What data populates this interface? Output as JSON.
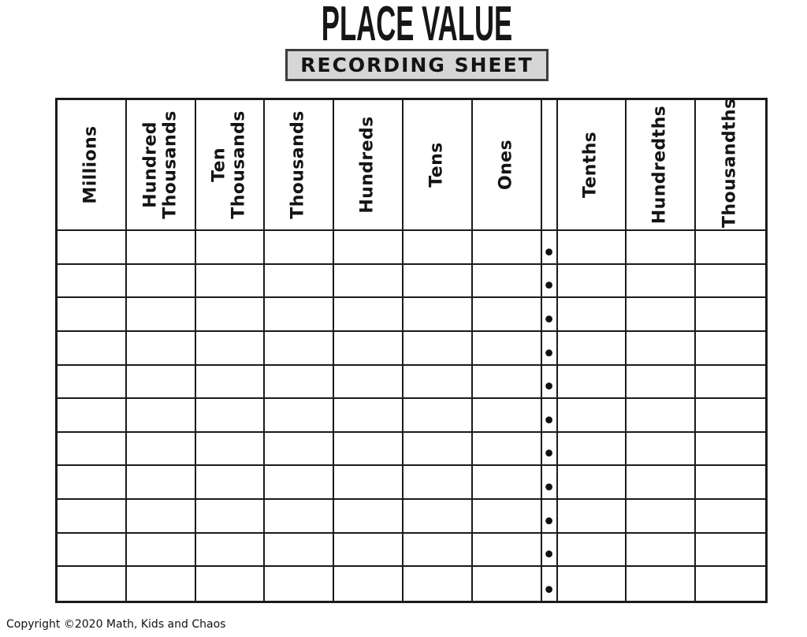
{
  "title": "PLACE VALUE",
  "subtitle": "RECORDING SHEET",
  "copyright": "Copyright ©2020 Math, Kids and Chaos",
  "table": {
    "columns": [
      {
        "label": "Millions",
        "type": "place"
      },
      {
        "label": "Hundred\nThousands",
        "type": "place"
      },
      {
        "label": "Ten\nThousands",
        "type": "place"
      },
      {
        "label": "Thousands",
        "type": "place"
      },
      {
        "label": "Hundreds",
        "type": "place"
      },
      {
        "label": "Tens",
        "type": "place"
      },
      {
        "label": "Ones",
        "type": "place"
      },
      {
        "label": "",
        "type": "decimal-separator"
      },
      {
        "label": "Tenths",
        "type": "place"
      },
      {
        "label": "Hundredths",
        "type": "place"
      },
      {
        "label": "Thousandths",
        "type": "place"
      }
    ],
    "body_row_count": 11,
    "decimal_point_symbol": "•"
  },
  "colors": {
    "ink": "#1b1b1b",
    "grid_line": "#1b1b1b",
    "subtitle_fill": "#d6d6d6",
    "subtitle_border": "#3d3d3d",
    "paper": "#ffffff"
  }
}
